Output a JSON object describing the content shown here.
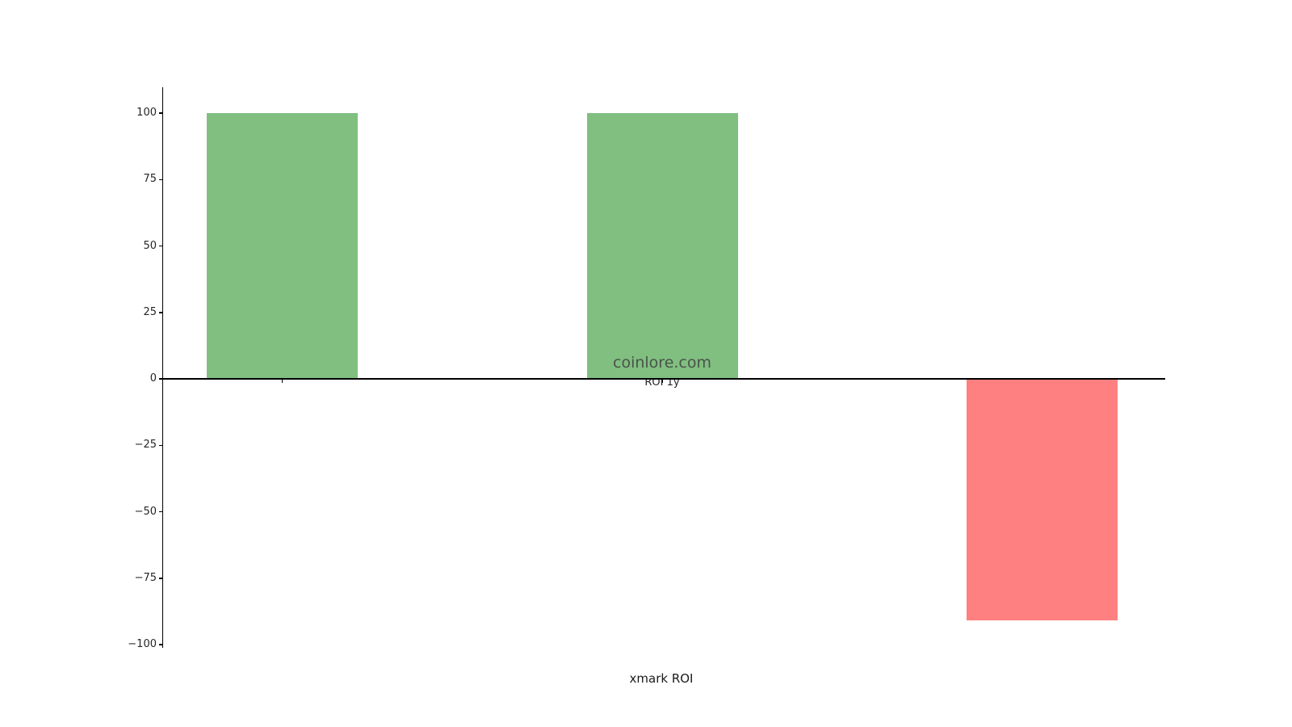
{
  "page": {
    "background": "#ffffff"
  },
  "chart_data": {
    "type": "bar",
    "title": "",
    "xlabel": "xmark ROI",
    "ylabel": "",
    "watermark": "coinlore.com",
    "categories": [
      "",
      "ROI 1y",
      ""
    ],
    "values": [
      100,
      100,
      -91
    ],
    "bar_colors": [
      "#80BF80",
      "#80BF80",
      "#FF8080"
    ],
    "positive_color": "#80BF80",
    "negative_color": "#FF8080",
    "yticks": [
      100,
      75,
      50,
      25,
      0,
      -25,
      -50,
      -75,
      -100
    ],
    "ylim": [
      -109,
      110
    ],
    "grid": false,
    "legend_position": "none",
    "axis_color": "#000000",
    "tick_text_color": "#262626",
    "watermark_color": "#444444"
  }
}
